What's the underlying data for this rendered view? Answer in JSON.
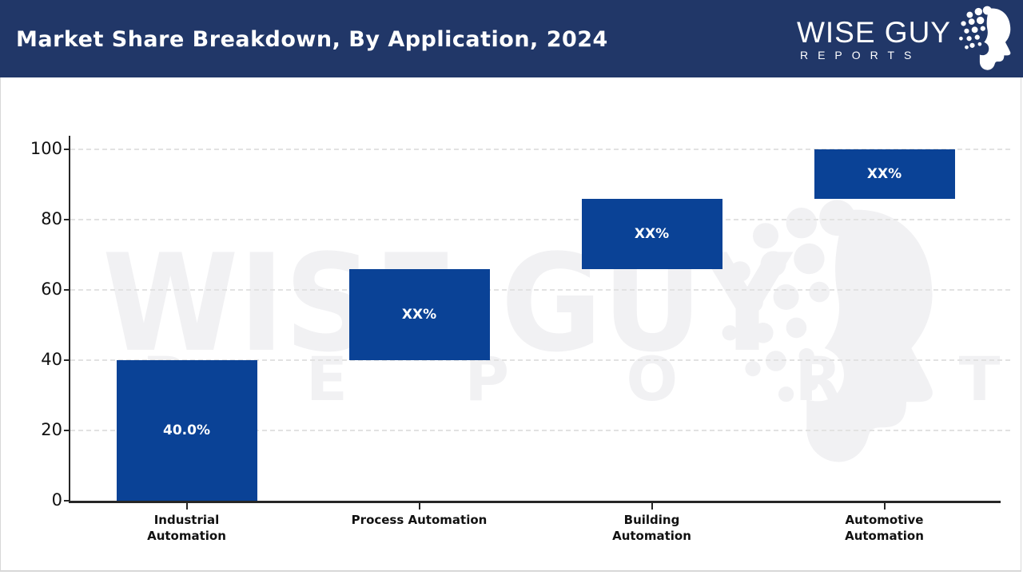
{
  "header": {
    "title": "Market Share Breakdown, By Application, 2024",
    "background_color": "#213768",
    "logo": {
      "line1": "WISE GUY",
      "line2": "REPORTS"
    }
  },
  "watermark": {
    "line1": "WISE GUY",
    "line2": "R E P O R T S"
  },
  "chart_data": {
    "type": "bar",
    "subtype": "waterfall",
    "title": "Market Share Breakdown, By Application, 2024",
    "categories": [
      "Industrial Automation",
      "Process Automation",
      "Building Automation",
      "Automotive Automation"
    ],
    "segments": [
      {
        "category": "Industrial Automation",
        "tick_lines": [
          "Industrial",
          "Automation"
        ],
        "start": 0,
        "end": 40,
        "label": "40.0%"
      },
      {
        "category": "Process Automation",
        "tick_lines": [
          "Process Automation"
        ],
        "start": 40,
        "end": 66,
        "label": "XX%"
      },
      {
        "category": "Building Automation",
        "tick_lines": [
          "Building",
          "Automation"
        ],
        "start": 66,
        "end": 86,
        "label": "XX%"
      },
      {
        "category": "Automotive Automation",
        "tick_lines": [
          "Automotive",
          "Automation"
        ],
        "start": 86,
        "end": 100,
        "label": "XX%"
      }
    ],
    "y_ticks": [
      0,
      20,
      40,
      60,
      80,
      100
    ],
    "ylim": [
      0,
      105
    ],
    "grid": true,
    "gridline_style": "dashed",
    "gridline_color": "#e2e2e2",
    "bar_color": "#0a4296",
    "bar_label_color": "#ffffff",
    "axis_color": "#262626",
    "legend": "none"
  }
}
